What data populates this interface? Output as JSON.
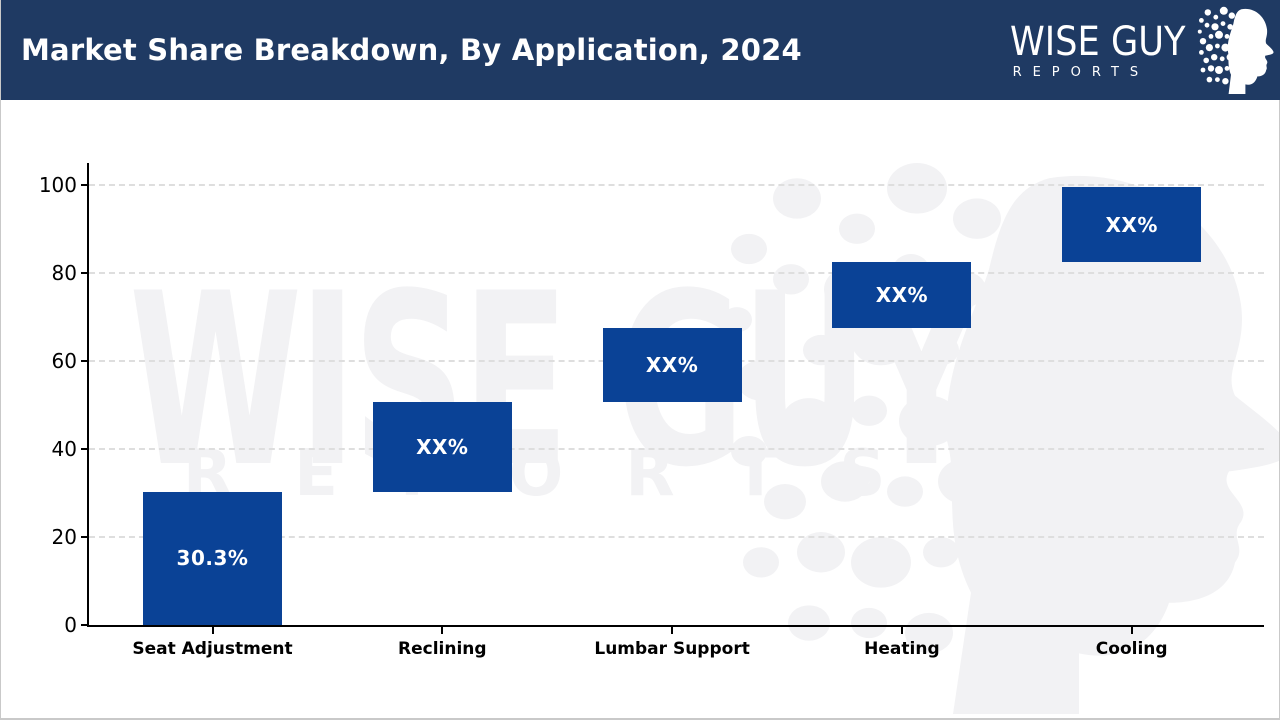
{
  "header": {
    "title": "Market Share Breakdown, By Application, 2024",
    "logo": {
      "line1": "WISE GUY",
      "line2": "REPORTS"
    }
  },
  "watermark": {
    "line1": "WISE GUY",
    "line2": "REPORTS"
  },
  "colors": {
    "header_bg": "#1F3A63",
    "bar": "#0A4296",
    "bar_label": "#FFFFFF",
    "gridline": "#DEDEDE",
    "axis": "#000000",
    "watermark": "#F2F2F4"
  },
  "chart_data": {
    "type": "bar",
    "subtype": "waterfall-floating-bars",
    "title": "Market Share Breakdown, By Application, 2024",
    "xlabel": "",
    "ylabel": "",
    "categories": [
      "Seat Adjustment",
      "Reclining",
      "Lumbar Support",
      "Heating",
      "Cooling"
    ],
    "segments": [
      {
        "category": "Seat Adjustment",
        "start": 0,
        "end": 30.3,
        "label": "30.3%"
      },
      {
        "category": "Reclining",
        "start": 30.3,
        "end": 50.6,
        "label": "XX%"
      },
      {
        "category": "Lumbar Support",
        "start": 50.6,
        "end": 67.5,
        "label": "XX%"
      },
      {
        "category": "Heating",
        "start": 67.5,
        "end": 82.4,
        "label": "XX%"
      },
      {
        "category": "Cooling",
        "start": 82.4,
        "end": 99.5,
        "label": "XX%"
      }
    ],
    "ylim": [
      0,
      100
    ],
    "yticks": [
      0,
      20,
      40,
      60,
      80,
      100
    ],
    "grid": "horizontal-dashed",
    "legend": "none"
  }
}
